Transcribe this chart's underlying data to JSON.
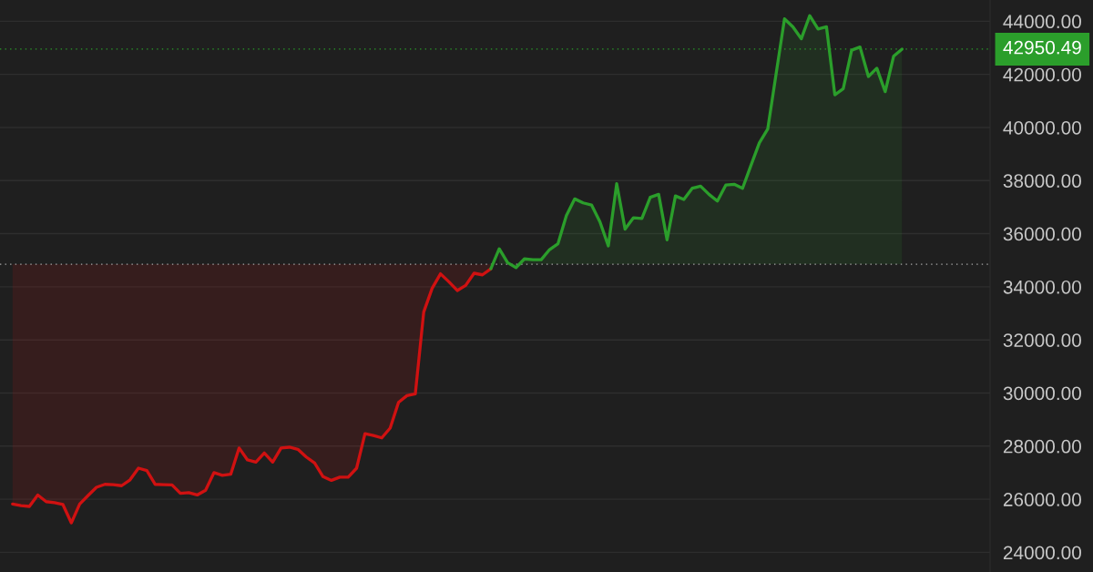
{
  "chart_data": {
    "type": "line",
    "categories": [
      null,
      null,
      null,
      null,
      null,
      null,
      null,
      null,
      null,
      null,
      null,
      null,
      null,
      null,
      null,
      null,
      null,
      null,
      null,
      null,
      null,
      null,
      null,
      null,
      null,
      null,
      null,
      null,
      null,
      null,
      null,
      null,
      null,
      null,
      null,
      null,
      null,
      null,
      null,
      null,
      null,
      null,
      null,
      null,
      null,
      null,
      null,
      null,
      null,
      null,
      null,
      null,
      null,
      null,
      null,
      null,
      null,
      null,
      null,
      null,
      null,
      null,
      null,
      null,
      null,
      null,
      null,
      null,
      null,
      null,
      null,
      null,
      null,
      null,
      null,
      null,
      null,
      null,
      null,
      null,
      null,
      null,
      null,
      null,
      null,
      null,
      null,
      null,
      null,
      null,
      null,
      null,
      null,
      null,
      null,
      null,
      null,
      null,
      null,
      null,
      null,
      null,
      null,
      null,
      null,
      null,
      null,
      null,
      null,
      null,
      null,
      null,
      null,
      null,
      null,
      null,
      null,
      null
    ],
    "series": [
      {
        "color": "#d01111",
        "values": [
          null,
          25820,
          25760,
          25730,
          26160,
          25910,
          25870,
          25800,
          25110,
          25820,
          26140,
          26450,
          26560,
          26550,
          26510,
          26730,
          27170,
          27080,
          26560,
          26550,
          26540,
          26220,
          26250,
          26160,
          26340,
          27000,
          26900,
          26940,
          27930,
          27480,
          27400,
          27740,
          27400,
          27930,
          27960,
          27880,
          27590,
          27360,
          26850,
          26710,
          26830,
          26830,
          27170,
          28470,
          28400,
          28310,
          28680,
          29650,
          29900,
          29970,
          33050,
          33940,
          34490,
          34190,
          33860,
          34050,
          34510,
          34450,
          34680,
          null,
          null,
          null,
          null,
          null,
          null,
          null,
          null,
          null,
          null,
          null,
          null,
          null,
          null,
          null,
          null,
          null,
          null,
          null,
          null,
          null,
          null,
          null,
          null,
          null,
          null,
          null,
          null,
          null,
          null,
          null,
          null,
          null,
          null,
          null,
          null,
          null,
          null,
          null,
          null,
          null,
          null,
          null,
          null,
          null,
          null,
          null,
          null,
          null,
          null,
          null,
          null,
          null,
          null,
          null,
          null,
          null,
          null,
          null
        ],
        "lower": [
          null,
          25820,
          25760,
          25730,
          26160,
          25910,
          25870,
          25800,
          25110,
          25820,
          26140,
          26450,
          26560,
          26550,
          26510,
          26730,
          27170,
          27080,
          26560,
          26550,
          26540,
          26220,
          26250,
          26160,
          26340,
          27000,
          26900,
          26940,
          27930,
          27480,
          27400,
          27740,
          27400,
          27930,
          27960,
          27880,
          27590,
          27360,
          26850,
          26710,
          26830,
          26830,
          27170,
          28470,
          28400,
          28310,
          28680,
          29650,
          29900,
          29970,
          33050,
          33940,
          34490,
          34190,
          33860,
          34050,
          34510,
          34450,
          34680,
          null,
          null,
          null,
          null,
          null,
          null,
          null,
          null,
          null,
          null,
          null,
          null,
          null,
          null,
          null,
          null,
          null,
          null,
          null,
          null,
          null,
          null,
          null,
          null,
          null,
          null,
          null,
          null,
          null,
          null,
          null,
          null,
          null,
          null,
          null,
          null,
          null,
          null,
          null,
          null,
          null,
          null,
          null,
          null,
          null,
          null,
          null,
          null,
          null,
          null,
          null,
          null,
          null,
          null,
          null,
          null,
          null,
          null,
          null
        ],
        "upper": [
          null,
          34850,
          34850,
          34850,
          34850,
          34850,
          34850,
          34850,
          34850,
          34850,
          34850,
          34850,
          34850,
          34850,
          34850,
          34850,
          34850,
          34850,
          34850,
          34850,
          34850,
          34850,
          34850,
          34850,
          34850,
          34850,
          34850,
          34850,
          34850,
          34850,
          34850,
          34850,
          34850,
          34850,
          34850,
          34850,
          34850,
          34850,
          34850,
          34850,
          34850,
          34850,
          34850,
          34850,
          34850,
          34850,
          34850,
          34850,
          34850,
          34850,
          34850,
          34850,
          34850,
          34850,
          34850,
          34850,
          34850,
          34850,
          34850,
          null,
          null,
          null,
          null,
          null,
          null,
          null,
          null,
          null,
          null,
          null,
          null,
          null,
          null,
          null,
          null,
          null,
          null,
          null,
          null,
          null,
          null,
          null,
          null,
          null,
          null,
          null,
          null,
          null,
          null,
          null,
          null,
          null,
          null,
          null,
          null,
          null,
          null,
          null,
          null,
          null,
          null,
          null,
          null,
          null,
          null,
          null,
          null,
          null,
          null,
          null,
          null,
          null,
          null,
          null,
          null,
          null,
          null,
          null
        ]
      },
      {
        "color": "#2b9e2b",
        "values": [
          null,
          null,
          null,
          null,
          null,
          null,
          null,
          null,
          null,
          null,
          null,
          null,
          null,
          null,
          null,
          null,
          null,
          null,
          null,
          null,
          null,
          null,
          null,
          null,
          null,
          null,
          null,
          null,
          null,
          null,
          null,
          null,
          null,
          null,
          null,
          null,
          null,
          null,
          null,
          null,
          null,
          null,
          null,
          null,
          null,
          null,
          null,
          null,
          null,
          null,
          null,
          null,
          null,
          null,
          null,
          null,
          null,
          null,
          34680,
          35430,
          34910,
          34720,
          35050,
          35020,
          35020,
          35400,
          35620,
          36680,
          37310,
          37160,
          37080,
          36450,
          35540,
          37880,
          36170,
          36600,
          36570,
          37370,
          37480,
          35770,
          37420,
          37290,
          37710,
          37790,
          37480,
          37230,
          37830,
          37860,
          37710,
          38570,
          39420,
          39940,
          42020,
          44090,
          43790,
          43340,
          44210,
          43710,
          43790,
          41230,
          41460,
          42910,
          43030,
          41920,
          42230,
          41350,
          42680,
          42950,
          null,
          null,
          null,
          null,
          null,
          null,
          null,
          null,
          null,
          null
        ],
        "lower": [
          null,
          null,
          null,
          null,
          null,
          null,
          null,
          null,
          null,
          null,
          null,
          null,
          null,
          null,
          null,
          null,
          null,
          null,
          null,
          null,
          null,
          null,
          null,
          null,
          null,
          null,
          null,
          null,
          null,
          null,
          null,
          null,
          null,
          null,
          null,
          null,
          null,
          null,
          null,
          null,
          null,
          null,
          null,
          null,
          null,
          null,
          null,
          null,
          null,
          null,
          null,
          null,
          null,
          null,
          null,
          null,
          null,
          null,
          null,
          34850,
          34850,
          34720,
          34850,
          34850,
          34850,
          34850,
          34850,
          34850,
          34850,
          34850,
          34850,
          34850,
          34850,
          34850,
          34850,
          34850,
          34850,
          34850,
          34850,
          34850,
          34850,
          34850,
          34850,
          34850,
          34850,
          34850,
          34850,
          34850,
          34850,
          34850,
          34850,
          34850,
          34850,
          34850,
          34850,
          34850,
          34850,
          34850,
          34850,
          34850,
          34850,
          34850,
          34850,
          34850,
          34850,
          34850,
          34850,
          34850,
          null,
          null,
          null,
          null,
          null,
          null,
          null,
          null,
          null,
          null
        ],
        "upper": [
          null,
          null,
          null,
          null,
          null,
          null,
          null,
          null,
          null,
          null,
          null,
          null,
          null,
          null,
          null,
          null,
          null,
          null,
          null,
          null,
          null,
          null,
          null,
          null,
          null,
          null,
          null,
          null,
          null,
          null,
          null,
          null,
          null,
          null,
          null,
          null,
          null,
          null,
          null,
          null,
          null,
          null,
          null,
          null,
          null,
          null,
          null,
          null,
          null,
          null,
          null,
          null,
          null,
          null,
          null,
          null,
          null,
          null,
          null,
          35430,
          34910,
          34850,
          35050,
          35020,
          35020,
          35400,
          35620,
          36680,
          37310,
          37160,
          37080,
          36450,
          35540,
          37880,
          36170,
          36600,
          36570,
          37370,
          37480,
          35770,
          37420,
          37290,
          37710,
          37790,
          37480,
          37230,
          37830,
          37860,
          37710,
          38570,
          39420,
          39940,
          42020,
          44090,
          43790,
          43340,
          44210,
          43710,
          43790,
          41230,
          41460,
          42910,
          43030,
          41920,
          42230,
          41350,
          42680,
          42950,
          null,
          null,
          null,
          null,
          null,
          null,
          null,
          null,
          null,
          null
        ]
      }
    ],
    "ylim": [
      23260,
      44800
    ],
    "yticks": [
      {
        "value": 24000,
        "label": "24000.00"
      },
      {
        "value": 26000,
        "label": "26000.00"
      },
      {
        "value": 28000,
        "label": "28000.00"
      },
      {
        "value": 30000,
        "label": "30000.00"
      },
      {
        "value": 32000,
        "label": "32000.00"
      },
      {
        "value": 34000,
        "label": "34000.00"
      },
      {
        "value": 36000,
        "label": "36000.00"
      },
      {
        "value": 38000,
        "label": "38000.00"
      },
      {
        "value": 40000,
        "label": "40000.00"
      },
      {
        "value": 42000,
        "label": "42000.00"
      },
      {
        "value": 44000,
        "label": "44000.00"
      }
    ],
    "ref_lines": [
      {
        "axis": "y",
        "value": 34850,
        "color": "#a8a8a8",
        "line_style": "dotted"
      },
      {
        "axis": "y",
        "value": 42950.49,
        "label": "42950.49",
        "color": "#2b9e2b",
        "line_style": "dotted"
      }
    ],
    "grid": "y",
    "tick_labels": "y"
  }
}
